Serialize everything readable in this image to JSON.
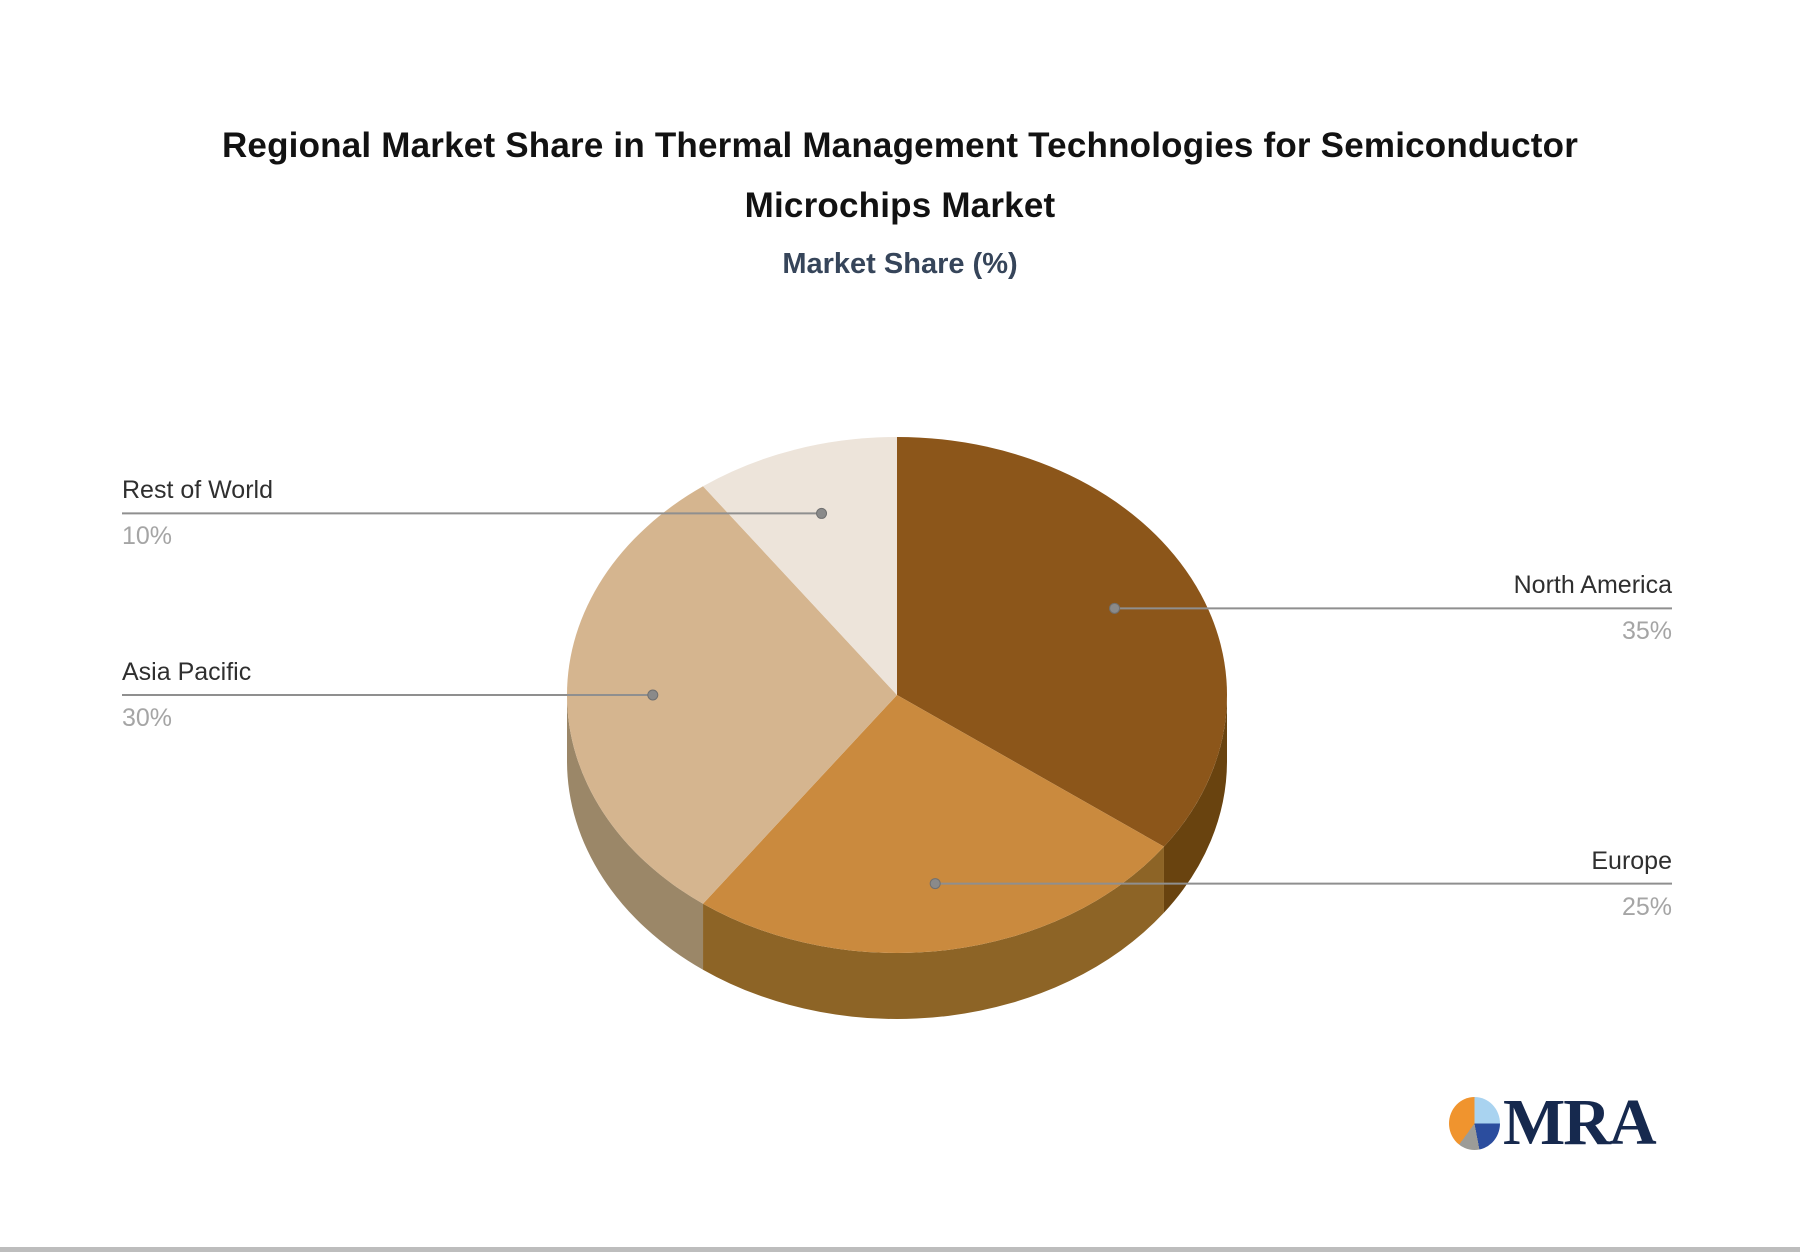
{
  "background": "#ffffff",
  "title": {
    "line1": "Regional Market Share in Thermal Management Technologies for Semiconductor",
    "line2": "Microchips Market",
    "color": "#121212"
  },
  "subtitle": {
    "text": "Market Share (%)",
    "color": "#36455A"
  },
  "chart_data": {
    "type": "pie",
    "title": "Regional Market Share in Thermal Management Technologies for Semiconductor Microchips Market",
    "subtitle": "Market Share (%)",
    "unit": "%",
    "effect": "3d",
    "start_angle_deg": 0,
    "direction": "clockwise",
    "legend": false,
    "labels_style": "callout-leader-lines",
    "slices": [
      {
        "label": "North America",
        "value": 35,
        "value_label": "35%",
        "color": "#8C561A",
        "side_color": "#69430F",
        "callout_side": "right"
      },
      {
        "label": "Europe",
        "value": 25,
        "value_label": "25%",
        "color": "#CA8A3E",
        "side_color": "#8D6426",
        "callout_side": "right"
      },
      {
        "label": "Asia Pacific",
        "value": 30,
        "value_label": "30%",
        "color": "#D5B58F",
        "side_color": "#9B8768",
        "callout_side": "left"
      },
      {
        "label": "Rest of World",
        "value": 10,
        "value_label": "10%",
        "color": "#EDE4DA",
        "side_color": "#BFB2A2",
        "callout_side": "left"
      }
    ],
    "callout_colors": {
      "name_text": "#2F2F2F",
      "value_text": "#A5A5A5",
      "leader_line": "#8F8F8F",
      "leader_dot_fill": "#8A8A8A",
      "leader_dot_stroke": "#707070"
    }
  },
  "logo": {
    "text": "MRA",
    "wordmark_color": "#16294E",
    "icon_colors": [
      "#A9D3F0",
      "#2B4D9E",
      "#9C9C98",
      "#F0942E"
    ]
  }
}
